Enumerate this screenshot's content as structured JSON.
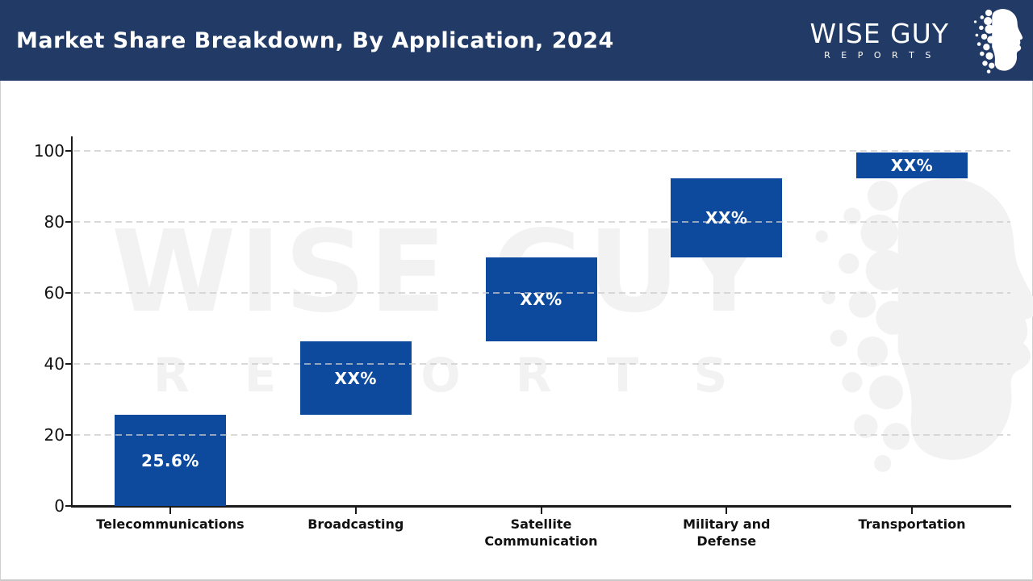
{
  "header": {
    "title": "Market Share Breakdown, By Application, 2024",
    "bg_color": "#213a66",
    "logo": {
      "line1": "WISE GUY",
      "line2": "R E P O R T S"
    }
  },
  "watermark": {
    "line1": "WISE GUY",
    "line2": "R E P O R T S"
  },
  "chart_data": {
    "type": "bar",
    "variant": "waterfall",
    "title": "Market Share Breakdown, By Application, 2024",
    "categories": [
      "Telecommunications",
      "Broadcasting",
      "Satellite Communication",
      "Military and Defense",
      "Transportation"
    ],
    "category_lines": [
      [
        "Telecommunications"
      ],
      [
        "Broadcasting"
      ],
      [
        "Satellite",
        "Communication"
      ],
      [
        "Military and",
        "Defense"
      ],
      [
        "Transportation"
      ]
    ],
    "segments": [
      {
        "category": "Telecommunications",
        "start": 0,
        "end": 25.6,
        "label": "25.6%"
      },
      {
        "category": "Broadcasting",
        "start": 25.6,
        "end": 46.3,
        "label": "XX%"
      },
      {
        "category": "Satellite Communication",
        "start": 46.3,
        "end": 70.0,
        "label": "XX%"
      },
      {
        "category": "Military and Defense",
        "start": 70.0,
        "end": 92.3,
        "label": "XX%"
      },
      {
        "category": "Transportation",
        "start": 92.3,
        "end": 99.6,
        "label": "XX%"
      }
    ],
    "bar_color": "#0d4a9e",
    "bar_label_color": "#ffffff",
    "axis_color": "#1a1a1a",
    "grid_color": "#d9d9d9",
    "grid": "horizontal-dashed",
    "ylim": [
      0,
      100
    ],
    "yticks": [
      0,
      20,
      40,
      60,
      80,
      100
    ],
    "xlabel": "",
    "ylabel": "",
    "legend": "none"
  }
}
